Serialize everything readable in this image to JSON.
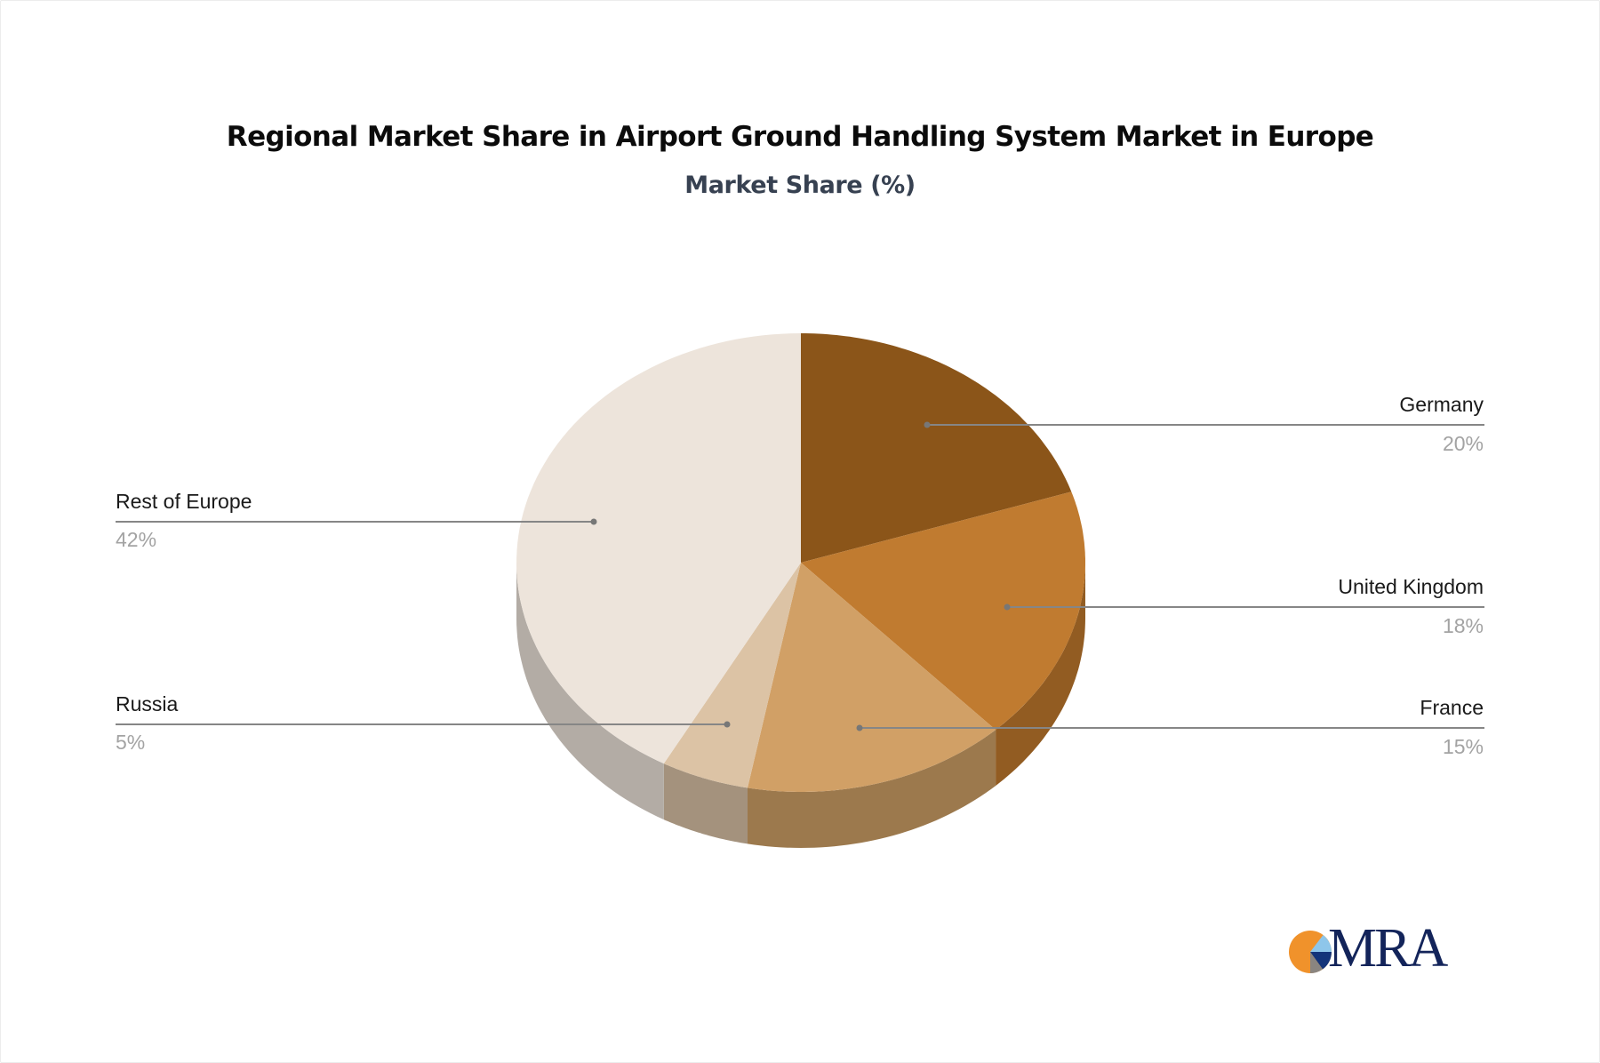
{
  "chart_data": {
    "type": "pie",
    "style": "3d",
    "title": "Regional Market Share in Airport Ground Handling System Market in Europe",
    "subtitle": "Market Share (%)",
    "unit": "%",
    "categories": [
      "Germany",
      "United Kingdom",
      "France",
      "Russia",
      "Rest of Europe"
    ],
    "values": [
      20,
      18,
      15,
      5,
      42
    ],
    "value_labels": [
      "20%",
      "18%",
      "15%",
      "5%",
      "42%"
    ],
    "colors": {
      "top": [
        "#8B5519",
        "#C07B30",
        "#D1A066",
        "#DCC3A5",
        "#EDE4DB"
      ],
      "side": [
        "#7A4A15",
        "#925C22",
        "#9C794D",
        "#A4927D",
        "#B3ACA5"
      ]
    },
    "start_angle_deg": 0,
    "direction": "clockwise",
    "legend": "none",
    "labels_position": "outside-with-leader-lines"
  },
  "labels": [
    {
      "name": "Germany",
      "value": "20%",
      "side": "right"
    },
    {
      "name": "United Kingdom",
      "value": "18%",
      "side": "right"
    },
    {
      "name": "France",
      "value": "15%",
      "side": "right"
    },
    {
      "name": "Russia",
      "value": "5%",
      "side": "left"
    },
    {
      "name": "Rest of Europe",
      "value": "42%",
      "side": "left"
    }
  ],
  "logo": {
    "text": "MRA",
    "colors": {
      "orange": "#F0922B",
      "light_blue": "#8EC6EA",
      "navy": "#13347A",
      "gray": "#8A8580",
      "text": "#13245A"
    }
  }
}
